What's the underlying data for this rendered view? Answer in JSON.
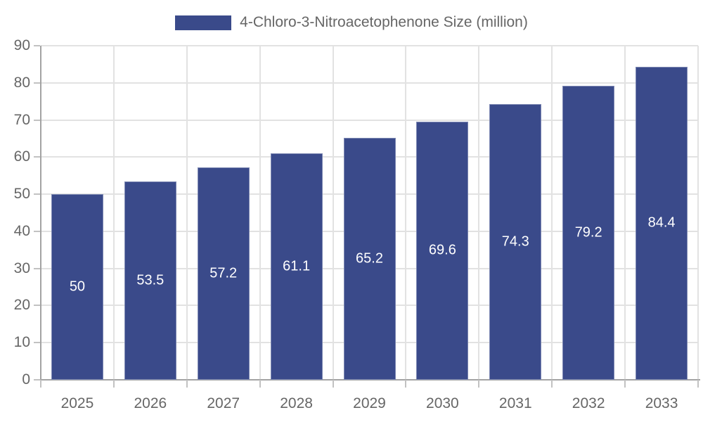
{
  "legend": {
    "label": "4-Chloro-3-Nitroacetophenone Size (million)"
  },
  "chart_data": {
    "type": "bar",
    "title": "4-Chloro-3-Nitroacetophenone Size (million)",
    "categories": [
      "2025",
      "2026",
      "2027",
      "2028",
      "2029",
      "2030",
      "2031",
      "2032",
      "2033"
    ],
    "values": [
      50,
      53.5,
      57.2,
      61.1,
      65.2,
      69.6,
      74.3,
      79.2,
      84.4
    ],
    "xlabel": "",
    "ylabel": "",
    "ylim": [
      0,
      90
    ],
    "ytick_interval": 10,
    "ytick_labels": [
      "0",
      "10",
      "20",
      "30",
      "40",
      "50",
      "60",
      "70",
      "80",
      "90"
    ],
    "grid": true,
    "legend_position": "top-center",
    "colors": {
      "bar_fill": "#3A4A8A",
      "value_label": "#FFFFFF",
      "axis_text": "#666666",
      "gridline": "#E2E2E2",
      "axis_line": "#A3A3A3",
      "tick_line": "#C2C2C2",
      "background": "#FFFFFF"
    }
  }
}
